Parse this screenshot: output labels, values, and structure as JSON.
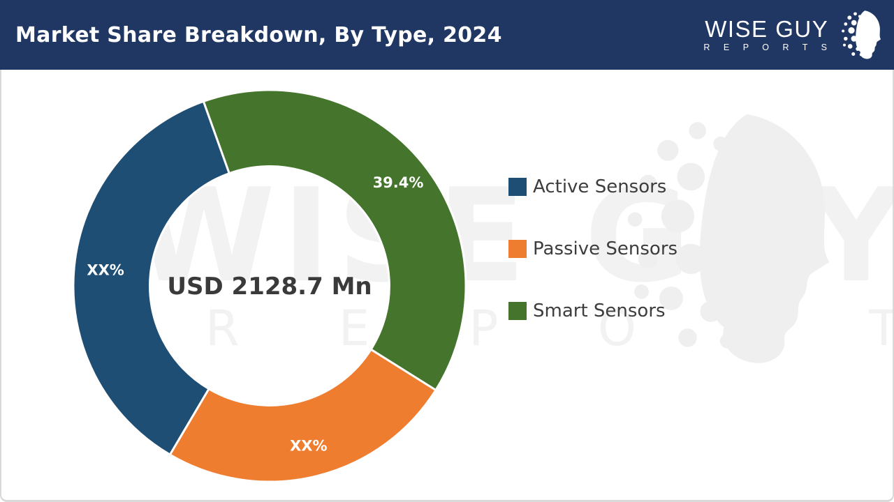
{
  "header": {
    "title": "Market Share Breakdown, By Type, 2024",
    "logo_name": "WISE GUY",
    "logo_subtitle": "R E P O R T S",
    "bg_color": "#213763"
  },
  "watermark": {
    "line1": "WISE GUY",
    "line2": "R E P O R T S"
  },
  "chart_data": {
    "type": "pie",
    "subtype": "donut",
    "title": "Market Share Breakdown, By Type, 2024",
    "center_label": "USD 2128.7 Mn",
    "start_angle_deg": -19.7,
    "clockwise": true,
    "inner_radius_ratio": 0.61,
    "legend_position": "right",
    "segments": [
      {
        "name": "Smart Sensors",
        "color": "#45752C",
        "pct": 39.4,
        "label": "39.4%"
      },
      {
        "name": "Passive Sensors",
        "color": "#EF7D30",
        "pct": 24.55,
        "label": "XX%"
      },
      {
        "name": "Active Sensors",
        "color": "#1F4E74",
        "pct": 36.05,
        "label": "XX%"
      }
    ],
    "legend": [
      {
        "label": "Active Sensors",
        "color": "#1F4E74"
      },
      {
        "label": "Passive Sensors",
        "color": "#EF7D30"
      },
      {
        "label": "Smart Sensors",
        "color": "#45752C"
      }
    ]
  }
}
